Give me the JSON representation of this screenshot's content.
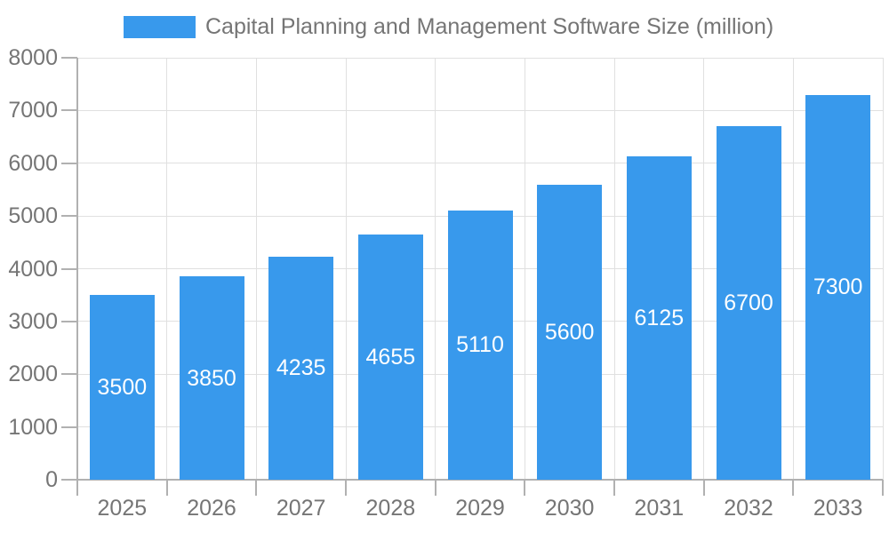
{
  "legend": {
    "label": "Capital Planning and Management Software Size (million)"
  },
  "chart_data": {
    "type": "bar",
    "title": "Capital Planning and Management Software Size (million)",
    "categories": [
      "2025",
      "2026",
      "2027",
      "2028",
      "2029",
      "2030",
      "2031",
      "2032",
      "2033"
    ],
    "values": [
      3500,
      3850,
      4235,
      4655,
      5110,
      5600,
      6125,
      6700,
      7300
    ],
    "xlabel": "",
    "ylabel": "",
    "ylim": [
      0,
      8000
    ],
    "ytick_step": 1000,
    "yticks": [
      0,
      1000,
      2000,
      3000,
      4000,
      5000,
      6000,
      7000,
      8000
    ],
    "grid": true,
    "legend_position": "top",
    "value_labels": "inside-center",
    "colors": {
      "bar": "#3899ec",
      "axis": "#b1b1b1",
      "grid": "#e0e0e0",
      "text": "#757575",
      "value_label": "#ffffff"
    }
  }
}
